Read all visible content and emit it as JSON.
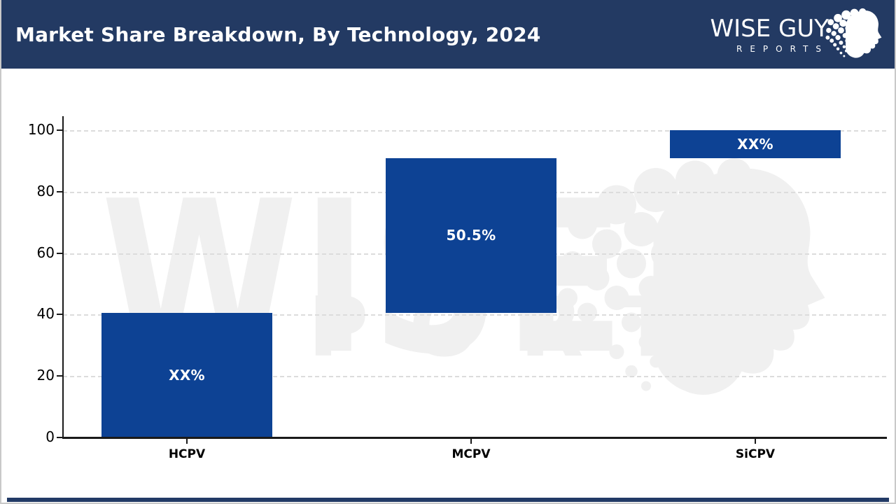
{
  "header": {
    "title": "Market Share Breakdown, By Technology, 2024",
    "bg_color": "#233a63",
    "logo": {
      "line1": "WISE GUY",
      "line2": "REPORTS"
    }
  },
  "watermark": {
    "line1": "WISE",
    "line2": "PORTS",
    "face_icon": "dotted-head-profile"
  },
  "chart_data": {
    "type": "bar",
    "subtype": "waterfall",
    "title": "Market Share Breakdown, By Technology, 2024",
    "categories": [
      "HCPV",
      "MCPV",
      "SiCPV"
    ],
    "segments": [
      {
        "category": "HCPV",
        "start": 0,
        "end": 40.5,
        "value": 40.5,
        "label": "XX%"
      },
      {
        "category": "MCPV",
        "start": 40.5,
        "end": 91,
        "value": 50.5,
        "label": "50.5%"
      },
      {
        "category": "SiCPV",
        "start": 91,
        "end": 100,
        "value": 9,
        "label": "XX%"
      }
    ],
    "yticks": [
      0,
      20,
      40,
      60,
      80,
      100
    ],
    "ylim": [
      0,
      105
    ],
    "xlabel": "",
    "ylabel": "",
    "grid": {
      "axis": "y",
      "style": "dashed",
      "color": "#dcdcdc"
    },
    "legend": "none",
    "bar_color": "#0d4294",
    "bar_label_color": "#ffffff",
    "axis_color": "#1a1a1a"
  }
}
